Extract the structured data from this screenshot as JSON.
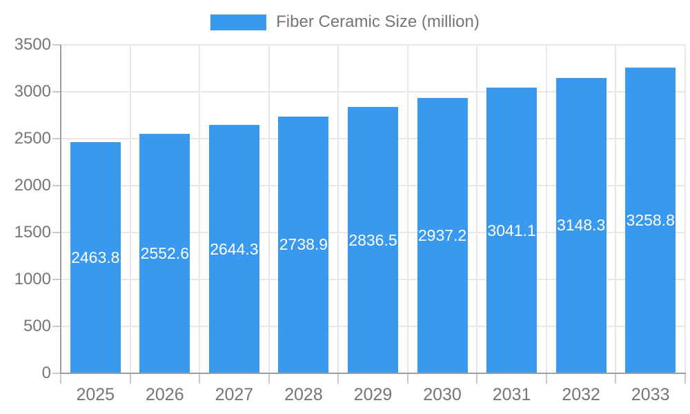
{
  "legend": {
    "label": "Fiber Ceramic Size (million)"
  },
  "colors": {
    "bar": "#3999EE",
    "axis_line": "#9E9E9E",
    "tick": "#C9C9C9",
    "grid": "#E7E7E7",
    "axis_text": "#757575",
    "value_text": "#FFFFFF",
    "background": "#FFFFFF"
  },
  "chart_data": {
    "type": "bar",
    "title": "",
    "legend_entries": [
      "Fiber Ceramic Size (million)"
    ],
    "legend_position": "top-center",
    "categories": [
      "2025",
      "2026",
      "2027",
      "2028",
      "2029",
      "2030",
      "2031",
      "2032",
      "2033"
    ],
    "values": [
      2463.8,
      2552.6,
      2644.3,
      2738.9,
      2836.5,
      2937.2,
      3041.1,
      3148.3,
      3258.8
    ],
    "value_label_decimals": 1,
    "value_label_placement": "inside-middle",
    "xlabel": "",
    "ylabel": "",
    "ylim": [
      0,
      3500
    ],
    "yticks": [
      0,
      500,
      1000,
      1500,
      2000,
      2500,
      3000,
      3500
    ],
    "grid": true
  }
}
